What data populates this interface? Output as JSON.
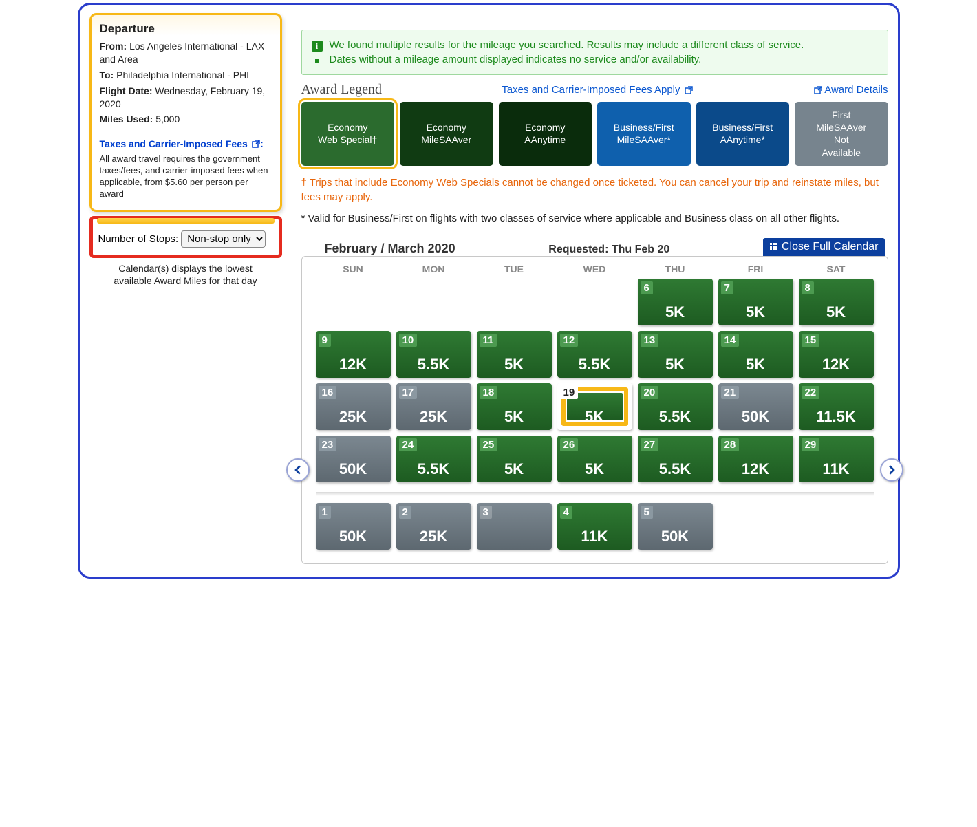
{
  "colors": {
    "outer_border": "#2a3dcc",
    "highlight_border": "#e52b1f",
    "accent_yellow": "#f7b817",
    "link_blue": "#0b57d0",
    "info_green": "#1d8a1d",
    "orange_text": "#e8660c",
    "close_btn_bg": "#0c3f9e"
  },
  "sidebar": {
    "heading": "Departure",
    "from_label": "From:",
    "from_value": "Los Angeles International - LAX and Area",
    "to_label": "To:",
    "to_value": "Philadelphia International - PHL",
    "date_label": "Flight Date:",
    "date_value": "Wednesday, February 19, 2020",
    "miles_label": "Miles Used:",
    "miles_value": "5,000",
    "taxes_link": "Taxes and Carrier-Imposed Fees",
    "taxes_colon": ":",
    "taxes_fine": "All award travel requires the government taxes/fees, and carrier-imposed fees when applicable, from $5.60 per person per award",
    "stops_label": "Number of Stops:",
    "stops_value": "Non-stop only",
    "cal_note_line1": "Calendar(s) displays the lowest",
    "cal_note_line2": "available Award Miles for that day"
  },
  "info": {
    "line1": "We found multiple results for the mileage you searched. Results may include a different class of service.",
    "line2": "Dates without a mileage amount displayed indicates no service and/or availability."
  },
  "legend": {
    "title": "Award Legend",
    "taxes_link": "Taxes and Carrier-Imposed Fees Apply",
    "details_link": "Award Details",
    "chips": [
      {
        "l1": "Economy",
        "l2": "Web Special†",
        "cls": "g1",
        "selected": true
      },
      {
        "l1": "Economy",
        "l2": "MileSAAver",
        "cls": "g2",
        "selected": false
      },
      {
        "l1": "Economy",
        "l2": "AAnytime",
        "cls": "g3",
        "selected": false
      },
      {
        "l1": "Business/First",
        "l2": "MileSAAver*",
        "cls": "b1",
        "selected": false
      },
      {
        "l1": "Business/First",
        "l2": "AAnytime*",
        "cls": "b2",
        "selected": false
      },
      {
        "l1": "First",
        "l2": "MileSAAver",
        "l3": "Not",
        "l4": "Available",
        "cls": "gr",
        "selected": false
      }
    ]
  },
  "notes": {
    "orange": "† Trips that include Economy Web Specials cannot be changed once ticketed. You can cancel your trip and reinstate miles, but fees may apply.",
    "black": "* Valid for Business/First on flights with two classes of service where applicable and Business class on all other flights."
  },
  "calendar": {
    "title": "February / March 2020",
    "requested": "Requested: Thu Feb 20",
    "close_label": "Close Full Calendar",
    "dow": [
      "SUN",
      "MON",
      "TUE",
      "WED",
      "THU",
      "FRI",
      "SAT"
    ],
    "cells": [
      {
        "type": "blank"
      },
      {
        "type": "blank"
      },
      {
        "type": "blank"
      },
      {
        "type": "blank"
      },
      {
        "type": "green",
        "num": "6",
        "miles": "5K"
      },
      {
        "type": "green",
        "num": "7",
        "miles": "5K"
      },
      {
        "type": "green",
        "num": "8",
        "miles": "5K"
      },
      {
        "type": "green",
        "num": "9",
        "miles": "12K"
      },
      {
        "type": "green",
        "num": "10",
        "miles": "5.5K"
      },
      {
        "type": "green",
        "num": "11",
        "miles": "5K"
      },
      {
        "type": "green",
        "num": "12",
        "miles": "5.5K"
      },
      {
        "type": "green",
        "num": "13",
        "miles": "5K"
      },
      {
        "type": "green",
        "num": "14",
        "miles": "5K"
      },
      {
        "type": "green",
        "num": "15",
        "miles": "12K"
      },
      {
        "type": "grey",
        "num": "16",
        "miles": "25K"
      },
      {
        "type": "grey",
        "num": "17",
        "miles": "25K"
      },
      {
        "type": "green",
        "num": "18",
        "miles": "5K"
      },
      {
        "type": "selected",
        "num": "19",
        "miles": "5K"
      },
      {
        "type": "green",
        "num": "20",
        "miles": "5.5K"
      },
      {
        "type": "grey",
        "num": "21",
        "miles": "50K"
      },
      {
        "type": "green",
        "num": "22",
        "miles": "11.5K"
      },
      {
        "type": "grey",
        "num": "23",
        "miles": "50K"
      },
      {
        "type": "green",
        "num": "24",
        "miles": "5.5K"
      },
      {
        "type": "green",
        "num": "25",
        "miles": "5K"
      },
      {
        "type": "green",
        "num": "26",
        "miles": "5K"
      },
      {
        "type": "green",
        "num": "27",
        "miles": "5.5K"
      },
      {
        "type": "green",
        "num": "28",
        "miles": "12K"
      },
      {
        "type": "green",
        "num": "29",
        "miles": "11K"
      },
      {
        "type": "grey",
        "num": "1",
        "miles": "50K"
      },
      {
        "type": "grey",
        "num": "2",
        "miles": "25K"
      },
      {
        "type": "empty-grey",
        "num": "3",
        "miles": ""
      },
      {
        "type": "green",
        "num": "4",
        "miles": "11K"
      },
      {
        "type": "grey",
        "num": "5",
        "miles": "50K"
      },
      {
        "type": "blank"
      },
      {
        "type": "blank"
      }
    ]
  }
}
